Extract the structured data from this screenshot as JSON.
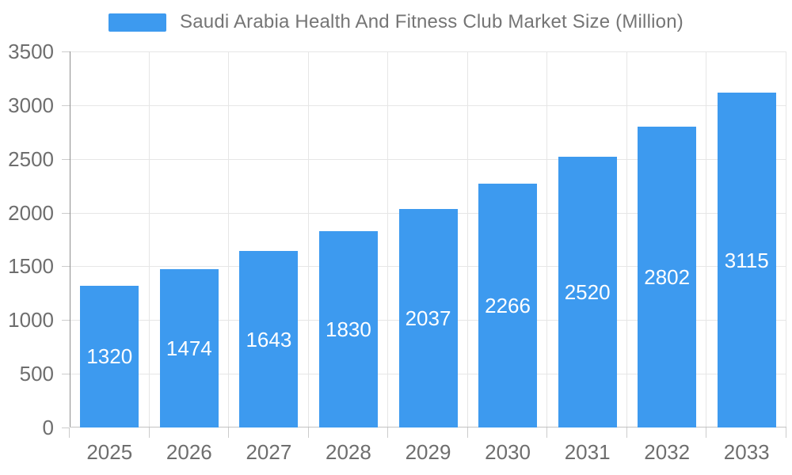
{
  "chart_data": {
    "type": "bar",
    "title": "Saudi Arabia Health And Fitness Club Market Size (Million)",
    "legend": {
      "position": "top-center",
      "label": "Saudi Arabia Health And Fitness Club Market Size (Million)"
    },
    "categories": [
      "2025",
      "2026",
      "2027",
      "2028",
      "2029",
      "2030",
      "2031",
      "2032",
      "2033"
    ],
    "series": [
      {
        "name": "Saudi Arabia Health And Fitness Club Market Size (Million)",
        "values": [
          1320,
          1474,
          1643,
          1830,
          2037,
          2266,
          2520,
          2802,
          3115
        ]
      }
    ],
    "xlabel": "",
    "ylabel": "",
    "ylim": [
      0,
      3500
    ],
    "yticks": [
      0,
      500,
      1000,
      1500,
      2000,
      2500,
      3000,
      3500
    ],
    "grid": {
      "horizontal": true,
      "vertical": true
    },
    "bar_value_labels": {
      "visible": true,
      "position": "inside-center"
    },
    "colors": {
      "bar": "#3d9aef",
      "bar_value_text": "#ffffff",
      "title_text": "#757575",
      "axis_label_text": "#6e6e6e",
      "gridline": "#e6e6e6",
      "axis_line": "#8f8f8f",
      "baseline": "#c2c2c2",
      "tick": "#cccccc",
      "background": "#ffffff"
    }
  }
}
